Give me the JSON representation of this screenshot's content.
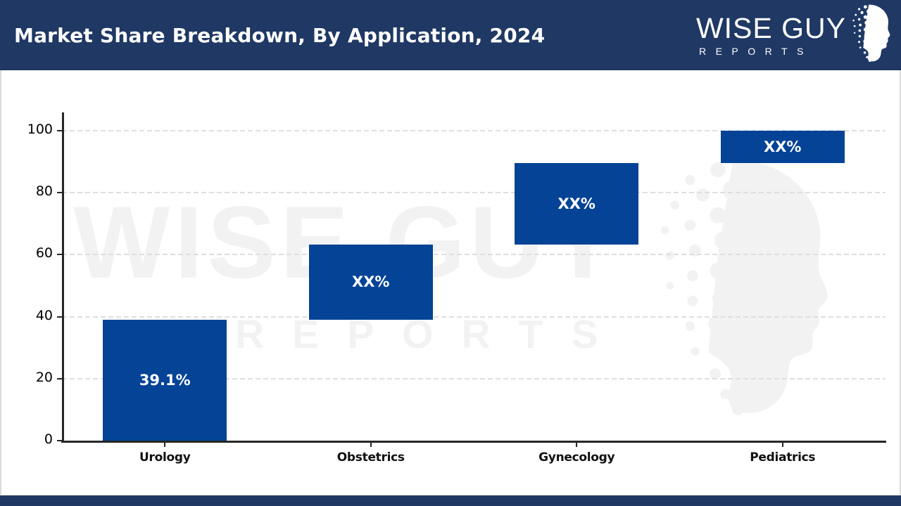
{
  "header": {
    "title": "Market Share Breakdown, By Application, 2024",
    "logo": {
      "brand": "WISE GUY",
      "sub": "REPORTS"
    }
  },
  "watermark": {
    "line1": "WISE GUY",
    "line2": "REPORTS"
  },
  "colors": {
    "header_bg": "#1f3864",
    "footer_bg": "#1f3864",
    "bar": "#044396",
    "bar_label": "#ffffff",
    "axis": "#262626",
    "gridline": "#dedede",
    "watermark": "#f2f2f2",
    "title_text": "#ffffff"
  },
  "chart_data": {
    "type": "bar",
    "subtype": "waterfall",
    "title": "Market Share Breakdown, By Application, 2024",
    "categories": [
      "Urology",
      "Obstetrics",
      "Gynecology",
      "Pediatrics"
    ],
    "segments": [
      {
        "category": "Urology",
        "start": 0,
        "end": 39.1,
        "value": 39.1,
        "label": "39.1%"
      },
      {
        "category": "Obstetrics",
        "start": 39.1,
        "end": 63.3,
        "value": 24.2,
        "label": "XX%"
      },
      {
        "category": "Gynecology",
        "start": 63.3,
        "end": 89.6,
        "value": 26.3,
        "label": "XX%"
      },
      {
        "category": "Pediatrics",
        "start": 89.6,
        "end": 100,
        "value": 10.4,
        "label": "XX%"
      }
    ],
    "xlabel": "",
    "ylabel": "",
    "ylim": [
      0,
      100
    ],
    "yticks": [
      0,
      20,
      40,
      60,
      80,
      100
    ],
    "grid": "horizontal-dashed",
    "legend": "none",
    "bar_color": "#044396"
  }
}
